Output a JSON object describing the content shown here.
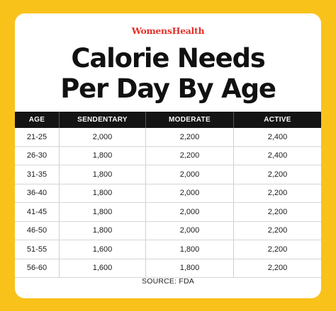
{
  "brand": "WomensHealth",
  "title_line1": "Calorie Needs",
  "title_line2": "Per Day By Age",
  "headers": [
    "AGE",
    "SENDENTARY",
    "MODERATE",
    "ACTIVE"
  ],
  "rows": [
    [
      "21-25",
      "2,000",
      "2,200",
      "2,400"
    ],
    [
      "26-30",
      "1,800",
      "2,200",
      "2,400"
    ],
    [
      "31-35",
      "1,800",
      "2,000",
      "2,200"
    ],
    [
      "36-40",
      "1,800",
      "2,000",
      "2,200"
    ],
    [
      "41-45",
      "1,800",
      "2,000",
      "2,200"
    ],
    [
      "46-50",
      "1,800",
      "2,000",
      "2,200"
    ],
    [
      "51-55",
      "1,600",
      "1,800",
      "2,200"
    ],
    [
      "56-60",
      "1,600",
      "1,800",
      "2,200"
    ]
  ],
  "source": "SOURCE: FDA",
  "colors": {
    "background": "#f9c21b",
    "card": "#ffffff",
    "header_bg": "#141414",
    "brand": "#e2312a"
  }
}
